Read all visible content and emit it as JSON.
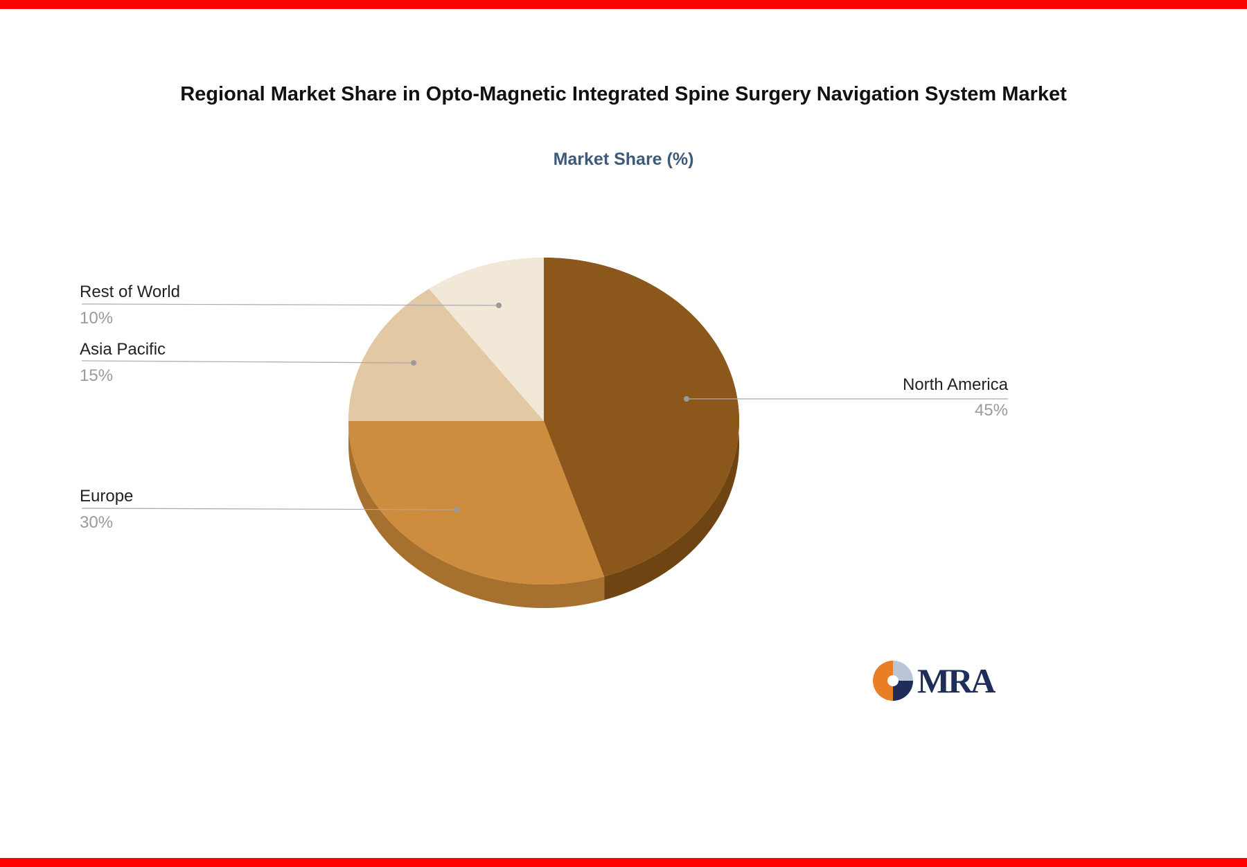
{
  "page": {
    "top_bar_color": "#ff0000",
    "bottom_bar_color": "#ff0000",
    "background_color": "#ffffff"
  },
  "chart_data": {
    "type": "pie",
    "title": "Regional Market Share in Opto-Magnetic Integrated Spine Surgery Navigation System Market",
    "subtitle": "Market Share (%)",
    "unit": "%",
    "start_angle_deg": 0,
    "direction": "clockwise",
    "legend_position": "none",
    "effect": "3d-extruded",
    "slices": [
      {
        "label": "North America",
        "value": 45,
        "pct_label": "45%",
        "color": "#8B571A",
        "side_color": "#6F4413"
      },
      {
        "label": "Europe",
        "value": 30,
        "pct_label": "30%",
        "color": "#CE8C3E",
        "side_color": "#A6702F"
      },
      {
        "label": "Asia Pacific",
        "value": 15,
        "pct_label": "15%",
        "color": "#E2C9A4",
        "side_color": "#BCA57F"
      },
      {
        "label": "Rest of World",
        "value": 10,
        "pct_label": "10%",
        "color": "#F2E8D8",
        "side_color": "#CFC3AE"
      }
    ],
    "label_colors": {
      "name": "#222222",
      "percent": "#9a9a9a",
      "leader_line": "#aaaaaa"
    }
  },
  "logo": {
    "text": "MRA",
    "text_color": "#1e2d5a",
    "icon_colors": {
      "left": "#e87f24",
      "top_right": "#b9c6d8",
      "bottom_right": "#1e2d5a"
    }
  }
}
